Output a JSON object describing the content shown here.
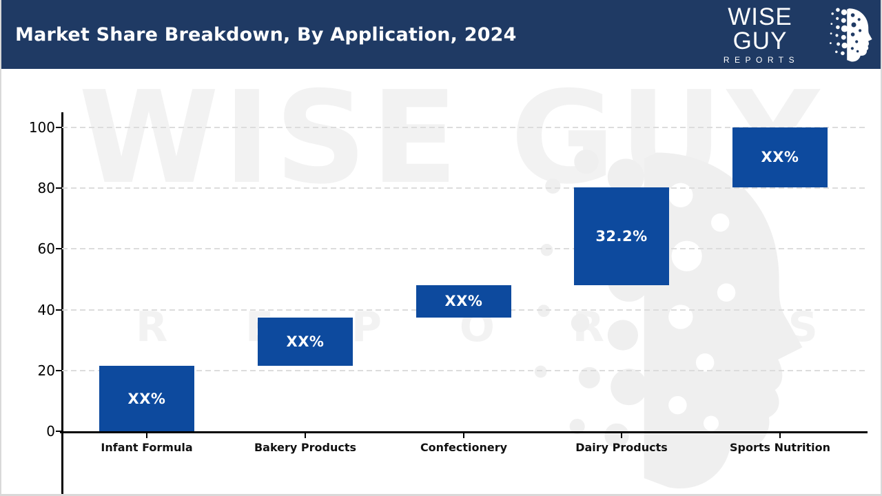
{
  "header": {
    "title": "Market Share Breakdown, By Application, 2024",
    "logo_line1": "WISE GUY",
    "logo_line2": "REPORTS"
  },
  "watermark": {
    "line1": "WISE GUY",
    "line2": "R E P O R T S"
  },
  "colors": {
    "header_bg": "#1f3a64",
    "bar": "#0d4a9e",
    "grid": "#dcdcdc",
    "title_text": "#ffffff",
    "bar_label_text": "#ffffff",
    "axis": "#000000",
    "watermark": "#f2f2f2"
  },
  "chart_data": {
    "type": "bar",
    "subtype": "waterfall-floating",
    "title": "Market Share Breakdown, By Application, 2024",
    "categories": [
      "Infant Formula",
      "Bakery Products",
      "Confectionery",
      "Dairy Products",
      "Sports Nutrition"
    ],
    "bars": [
      {
        "category": "Infant Formula",
        "start": 0,
        "end": 21.5,
        "label": "XX%"
      },
      {
        "category": "Bakery Products",
        "start": 21.5,
        "end": 37.4,
        "label": "XX%"
      },
      {
        "category": "Confectionery",
        "start": 37.4,
        "end": 48.1,
        "label": "XX%"
      },
      {
        "category": "Dairy Products",
        "start": 48.1,
        "end": 80.3,
        "label": "32.2%"
      },
      {
        "category": "Sports Nutrition",
        "start": 80.3,
        "end": 100,
        "label": "XX%"
      }
    ],
    "xlabel": "",
    "ylabel": "",
    "yticks": [
      0,
      20,
      40,
      60,
      80,
      100
    ],
    "ylim": [
      0,
      105
    ],
    "grid": "horizontal-dashed",
    "legend": "none"
  }
}
